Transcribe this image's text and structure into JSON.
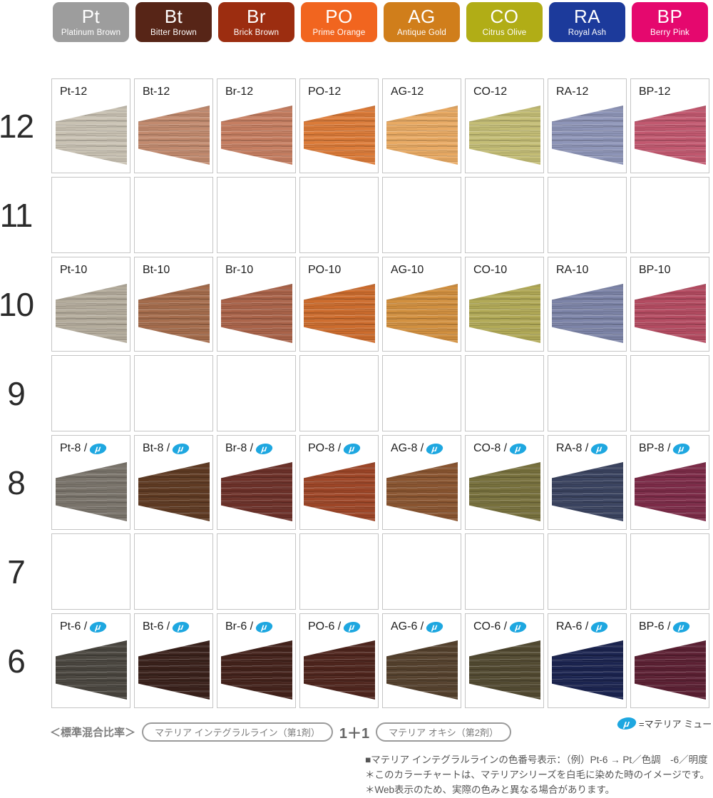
{
  "chart_data": {
    "type": "table",
    "description": "Hair color swatch chart: 8 color families (columns) x lightness levels 12-6 (rows); levels 11, 9 and 7 are empty",
    "columns": [
      {
        "code": "Pt",
        "name": "Platinum Brown",
        "badge_color": "#9d9d9d"
      },
      {
        "code": "Bt",
        "name": "Bitter Brown",
        "badge_color": "#572517"
      },
      {
        "code": "Br",
        "name": "Brick Brown",
        "badge_color": "#9c2d10"
      },
      {
        "code": "PO",
        "name": "Prime Orange",
        "badge_color": "#f1651f"
      },
      {
        "code": "AG",
        "name": "Antique Gold",
        "badge_color": "#d07e1b"
      },
      {
        "code": "CO",
        "name": "Citrus Olive",
        "badge_color": "#b1ad16"
      },
      {
        "code": "RA",
        "name": "Royal Ash",
        "badge_color": "#1c3a9b"
      },
      {
        "code": "BP",
        "name": "Berry Pink",
        "badge_color": "#e5086e"
      }
    ],
    "rows": [
      {
        "level": "12",
        "mu": false,
        "swatches": [
          {
            "label": "Pt-12",
            "color": "#c9c2b3"
          },
          {
            "label": "Bt-12",
            "color": "#c28a6e"
          },
          {
            "label": "Br-12",
            "color": "#c67e61"
          },
          {
            "label": "PO-12",
            "color": "#dc7b38"
          },
          {
            "label": "AG-12",
            "color": "#e9aa63"
          },
          {
            "label": "CO-12",
            "color": "#c4bd75"
          },
          {
            "label": "RA-12",
            "color": "#8e95b8"
          },
          {
            "label": "BP-12",
            "color": "#c2586f"
          }
        ]
      },
      {
        "level": "11",
        "mu": false,
        "swatches": null
      },
      {
        "level": "10",
        "mu": false,
        "swatches": [
          {
            "label": "Pt-10",
            "color": "#b4ac9c"
          },
          {
            "label": "Bt-10",
            "color": "#a56c4c"
          },
          {
            "label": "Br-10",
            "color": "#aa6349"
          },
          {
            "label": "PO-10",
            "color": "#cd6c2d"
          },
          {
            "label": "AG-10",
            "color": "#d2903f"
          },
          {
            "label": "CO-10",
            "color": "#b2aa57"
          },
          {
            "label": "RA-10",
            "color": "#7d84a8"
          },
          {
            "label": "BP-10",
            "color": "#b44b61"
          }
        ]
      },
      {
        "level": "9",
        "mu": false,
        "swatches": null
      },
      {
        "level": "8",
        "mu": true,
        "swatches": [
          {
            "label": "Pt-8",
            "color": "#7a746b"
          },
          {
            "label": "Bt-8",
            "color": "#5f3a22"
          },
          {
            "label": "Br-8",
            "color": "#6d3129"
          },
          {
            "label": "PO-8",
            "color": "#9e4627"
          },
          {
            "label": "AG-8",
            "color": "#8a5530"
          },
          {
            "label": "CO-8",
            "color": "#78713d"
          },
          {
            "label": "RA-8",
            "color": "#3a4360"
          },
          {
            "label": "BP-8",
            "color": "#7d2b48"
          }
        ]
      },
      {
        "level": "7",
        "mu": false,
        "swatches": null
      },
      {
        "level": "6",
        "mu": true,
        "swatches": [
          {
            "label": "Pt-6",
            "color": "#4a463f"
          },
          {
            "label": "Bt-6",
            "color": "#3a211b"
          },
          {
            "label": "Br-6",
            "color": "#44221b"
          },
          {
            "label": "PO-6",
            "color": "#4f251d"
          },
          {
            "label": "AG-6",
            "color": "#55412d"
          },
          {
            "label": "CO-6",
            "color": "#524a31"
          },
          {
            "label": "RA-6",
            "color": "#1b2450"
          },
          {
            "label": "BP-6",
            "color": "#5c2033"
          }
        ]
      }
    ],
    "mu_icon_color": "#1ea7e0"
  },
  "footer": {
    "ratio_label": "＜標準混合比率＞",
    "pill1": "マテリア インテグラルライン（第1剤）",
    "plus": "1＋1",
    "pill2": "マテリア オキシ（第2剤）",
    "mu_symbol": "μ",
    "mu_legend": "=マテリア ミュー"
  },
  "notes": {
    "line1": "■マテリア インテグラルラインの色番号表示：（例）Pt-6 → Pt／色調　-6／明度",
    "line2": "＊このカラーチャートは、マテリアシリーズを白毛に染めた時のイメージです。",
    "line3": "＊Web表示のため、実際の色みと異なる場合があります。"
  }
}
